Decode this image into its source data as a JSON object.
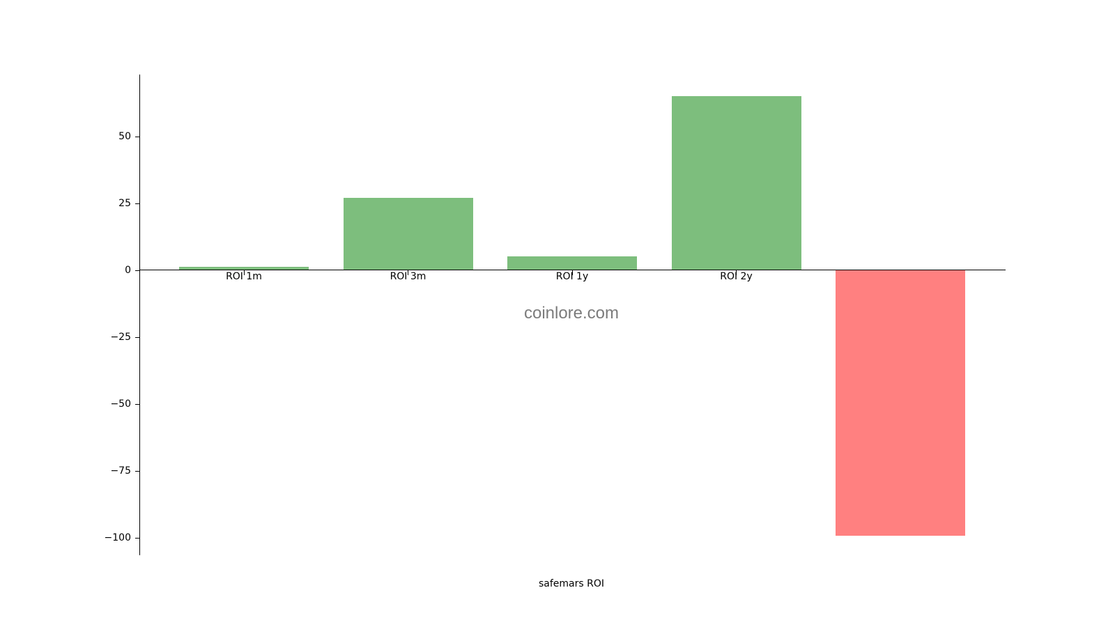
{
  "chart_data": {
    "type": "bar",
    "title": "",
    "xlabel": "safemars ROI",
    "ylabel": "",
    "categories": [
      "ROI 1m",
      "ROI 3m",
      "ROI 1y",
      "ROI 2y",
      ""
    ],
    "values": [
      1.3,
      27.1,
      5.2,
      65.1,
      -99.3
    ],
    "series": [
      {
        "name": "safemars ROI",
        "values": [
          1.3,
          27.1,
          5.2,
          65.1,
          -99.3
        ]
      }
    ],
    "yticks": [
      50,
      25,
      0,
      -25,
      -50,
      -75,
      -100
    ],
    "ylim": [
      -106.5,
      73.2
    ],
    "grid": false,
    "legend": "none",
    "bar_colors": [
      "#7dbe7d",
      "#7dbe7d",
      "#7dbe7d",
      "#7dbe7d",
      "#ff8080"
    ],
    "positive_color": "#7dbe7d",
    "negative_color": "#ff8080"
  },
  "watermark": {
    "text": "coinlore.com",
    "color": "#7c7c7c"
  },
  "colors": {
    "axis": "#000000",
    "tick_text": "#000000",
    "background": "#ffffff"
  }
}
